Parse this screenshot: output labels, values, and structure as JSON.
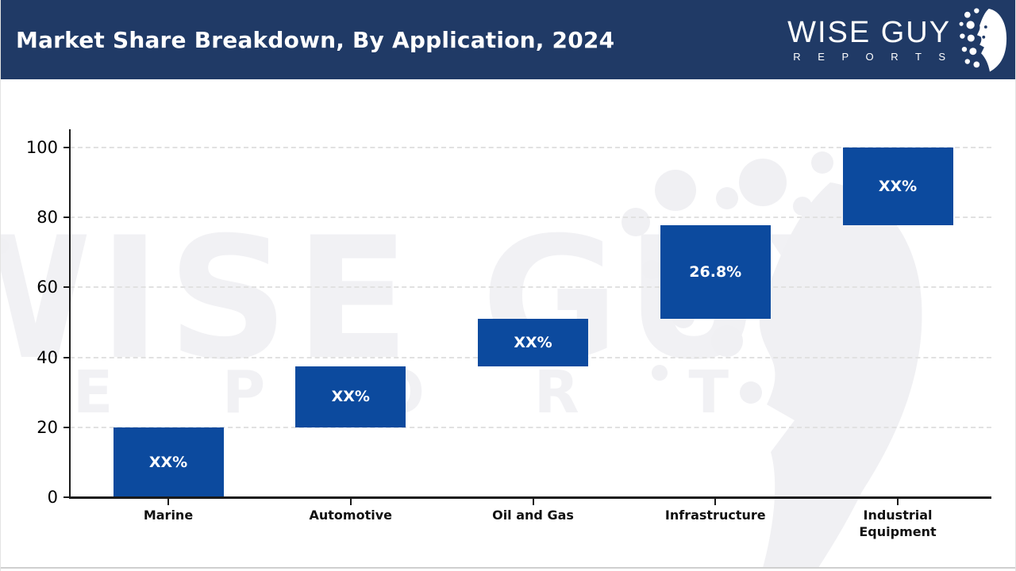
{
  "header": {
    "title": "Market Share Breakdown, By Application, 2024",
    "bg_color": "#203A66",
    "logo": {
      "primary": "WISE GUY",
      "secondary": "R E P O R T S"
    }
  },
  "watermark": {
    "line1": "WISE GUY",
    "line2": "R E P O R T S"
  },
  "chart_data": {
    "type": "bar",
    "subtype": "floating-segment-waterfall",
    "title": "Market Share Breakdown, By Application, 2024",
    "categories": [
      "Marine",
      "Automotive",
      "Oil and Gas",
      "Infrastructure",
      "Industrial Equipment"
    ],
    "series": [
      {
        "name": "Market share (%)",
        "segments": [
          [
            0,
            20
          ],
          [
            20,
            37.5
          ],
          [
            37.5,
            51
          ],
          [
            51,
            77.8
          ],
          [
            77.8,
            100
          ]
        ],
        "spans": [
          20,
          17.5,
          13.5,
          26.8,
          22.2
        ],
        "bar_labels": [
          "XX%",
          "XX%",
          "XX%",
          "26.8%",
          "XX%"
        ]
      }
    ],
    "xlabel": "",
    "ylabel": "",
    "ylim": [
      0,
      100
    ],
    "yticks": [
      0,
      20,
      40,
      60,
      80,
      100
    ],
    "grid": "horizontal-dashed",
    "legend": "none",
    "bar_color": "#0C4A9E",
    "bar_label_color": "#FFFFFF",
    "axis_color": "#1A1A1A",
    "grid_color": "#E1E1E1"
  }
}
